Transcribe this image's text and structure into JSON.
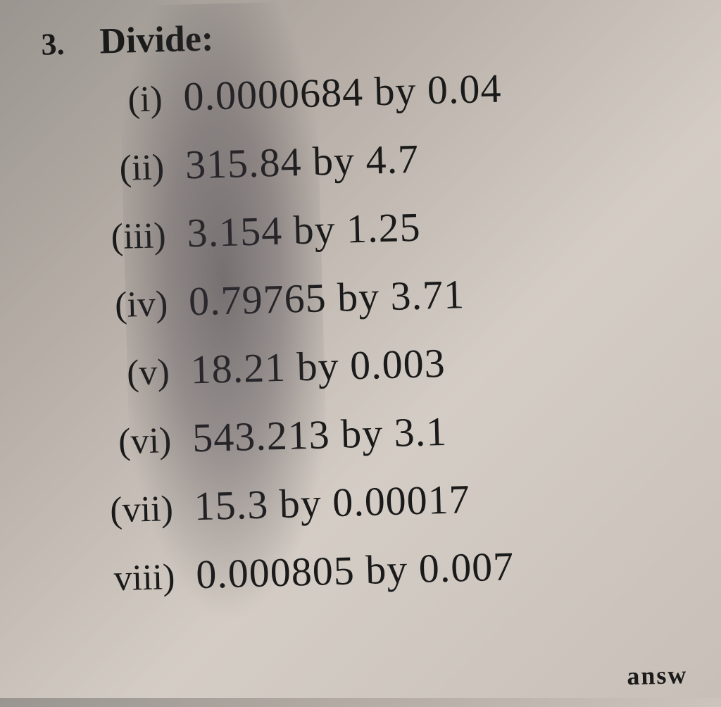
{
  "question": {
    "number": "3.",
    "title": "Divide:"
  },
  "items": [
    {
      "label": "(i)",
      "dividend": "0.0000684",
      "divisor": "0.04"
    },
    {
      "label": "(ii)",
      "dividend": "315.84",
      "divisor": "4.7"
    },
    {
      "label": "(iii)",
      "dividend": "3.154",
      "divisor": "1.25"
    },
    {
      "label": "(iv)",
      "dividend": "0.79765",
      "divisor": "3.71"
    },
    {
      "label": "(v)",
      "dividend": "18.21",
      "divisor": "0.003"
    },
    {
      "label": "(vi)",
      "dividend": "543.213",
      "divisor": "3.1"
    },
    {
      "label": "(vii)",
      "dividend": "15.3",
      "divisor": "0.00017"
    },
    {
      "label": "viii)",
      "dividend": "0.000805",
      "divisor": "0.007"
    }
  ],
  "separator_word": "by",
  "partial_text": "answ",
  "styling": {
    "background_gradient": [
      "#9a9590",
      "#b8b0a8",
      "#d4cdc5",
      "#c8c0b8"
    ],
    "text_color": "#1a1a1a",
    "number_fontsize": 44,
    "title_fontsize": 52,
    "label_fontsize": 52,
    "item_fontsize": 58,
    "font_family": "Georgia, Times New Roman, serif",
    "rotation_deg": -1.5,
    "shadow_color": "rgba(60, 55, 65, 0.55)"
  }
}
